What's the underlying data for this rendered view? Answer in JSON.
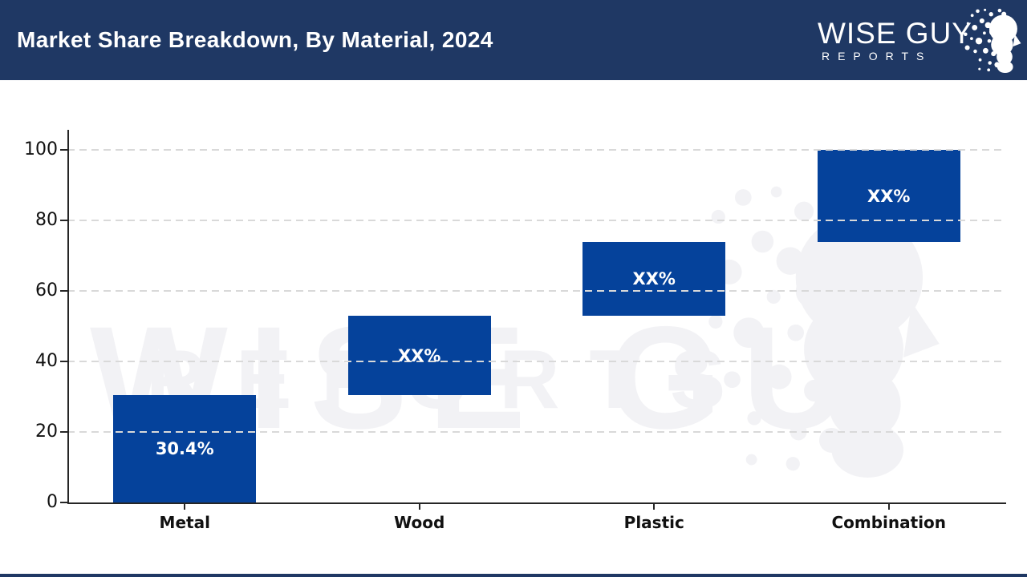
{
  "header": {
    "title": "Market Share Breakdown, By Material, 2024",
    "logo": {
      "wordmark": "WISE GUY",
      "subtitle": "REPORTS"
    }
  },
  "watermark": {
    "line1": "WISE GU",
    "line2": "R E P O R T S"
  },
  "chart_data": {
    "type": "bar",
    "subtype": "waterfall",
    "title": "Market Share Breakdown, By Material, 2024",
    "categories": [
      "Metal",
      "Wood",
      "Plastic",
      "Combination"
    ],
    "segments": [
      {
        "category": "Metal",
        "start": 0,
        "end": 30.4,
        "label": "30.4%"
      },
      {
        "category": "Wood",
        "start": 30.4,
        "end": 53.0,
        "label": "XX%"
      },
      {
        "category": "Plastic",
        "start": 53.0,
        "end": 73.8,
        "label": "XX%"
      },
      {
        "category": "Combination",
        "start": 73.8,
        "end": 100,
        "label": "XX%"
      }
    ],
    "xlabel": "",
    "ylabel": "",
    "ylim": [
      0,
      105
    ],
    "yticks": [
      0,
      20,
      40,
      60,
      80,
      100
    ],
    "grid": true,
    "grid_style": "dashed",
    "legend": "none",
    "bar_color": "#05429B",
    "bar_label_color": "#FFFFFF"
  },
  "colors": {
    "header_bg": "#1F3864",
    "footer_bg": "#1F3864",
    "chart_bg": "#FFFFFF",
    "bar": "#05429B",
    "gridline": "#D9D9D9",
    "axis": "#262626",
    "watermark": "#F2F2F5",
    "title_text": "#FFFFFF"
  }
}
